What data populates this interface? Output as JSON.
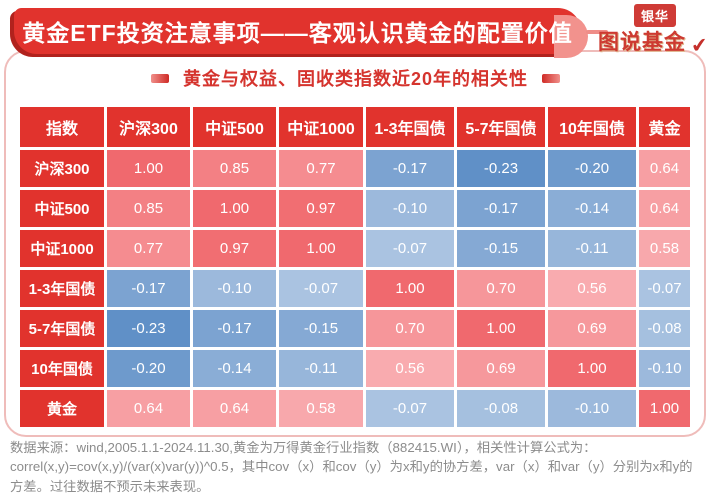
{
  "header": {
    "title": "黄金ETF投资注意事项——客观认识黄金的配置价值",
    "logo": {
      "name": "银华",
      "series": "图说基金",
      "check_glyph": "✔"
    }
  },
  "subtitle": "黄金与权益、固收类指数近20年的相关性",
  "chart_data": {
    "type": "heatmap",
    "title": "黄金与权益、固收类指数近20年的相关性",
    "corner_label": "指数",
    "columns": [
      "沪深300",
      "中证500",
      "中证1000",
      "1-3年国债",
      "5-7年国债",
      "10年国债",
      "黄金"
    ],
    "rows": [
      "沪深300",
      "中证500",
      "中证1000",
      "1-3年国债",
      "5-7年国债",
      "10年国债",
      "黄金"
    ],
    "values": [
      [
        1.0,
        0.85,
        0.77,
        -0.17,
        -0.23,
        -0.2,
        0.64
      ],
      [
        0.85,
        1.0,
        0.97,
        -0.1,
        -0.17,
        -0.14,
        0.64
      ],
      [
        0.77,
        0.97,
        1.0,
        -0.07,
        -0.15,
        -0.11,
        0.58
      ],
      [
        -0.17,
        -0.1,
        -0.07,
        1.0,
        0.7,
        0.56,
        -0.07
      ],
      [
        -0.23,
        -0.17,
        -0.15,
        0.7,
        1.0,
        0.69,
        -0.08
      ],
      [
        -0.2,
        -0.14,
        -0.11,
        0.56,
        0.69,
        1.0,
        -0.1
      ],
      [
        0.64,
        0.64,
        0.58,
        -0.07,
        -0.08,
        -0.1,
        1.0
      ]
    ],
    "palette": {
      "header_bg": "#e1332d",
      "positive_strong": "#f0696e",
      "positive_weak": "#fab4b8",
      "negative_strong": "#6090c7",
      "negative_weak": "#b3c9e4"
    }
  },
  "footer": {
    "text": "数据来源：wind,2005.1.1-2024.11.30,黄金为万得黄金行业指数（882415.WI），相关性计算公式为：correl(x,y)=cov(x,y)/(var(x)var(y))^0.5，其中cov（x）和cov（y）为x和y的协方差，var（x）和var（y）分别为x和y的方差。过往数据不预示未来表现。"
  }
}
